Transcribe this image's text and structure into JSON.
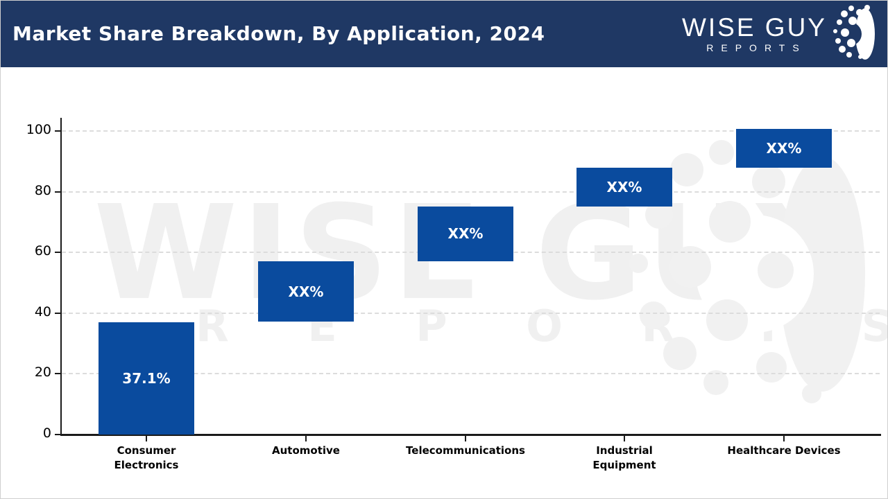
{
  "header": {
    "title": "Market Share Breakdown, By Application, 2024",
    "brand_line1": "WISE GUY",
    "brand_line2": "REPORTS",
    "bg_color": "#1f3864"
  },
  "watermark": {
    "line1": "WISE GUY",
    "line2": "R E P O R T S"
  },
  "chart_data": {
    "type": "bar",
    "subtype": "floating-waterfall-segments",
    "title": "Market Share Breakdown, By Application, 2024",
    "categories": [
      "Consumer Electronics",
      "Automotive",
      "Telecommunications",
      "Industrial Equipment",
      "Healthcare Devices"
    ],
    "category_display_lines": [
      [
        "Consumer",
        "Electronics"
      ],
      [
        "Automotive"
      ],
      [
        "Telecommunications"
      ],
      [
        "Industrial",
        "Equipment"
      ],
      [
        "Healthcare Devices"
      ]
    ],
    "segments": [
      {
        "category": "Consumer Electronics",
        "start": 0,
        "end": 37.1,
        "value": 37.1,
        "label": "37.1%"
      },
      {
        "category": "Automotive",
        "start": 37.1,
        "end": 57.1,
        "value": 20.0,
        "label": "XX%"
      },
      {
        "category": "Telecommunications",
        "start": 57.1,
        "end": 75.2,
        "value": 18.1,
        "label": "XX%"
      },
      {
        "category": "Industrial Equipment",
        "start": 75.2,
        "end": 87.9,
        "value": 12.7,
        "label": "XX%"
      },
      {
        "category": "Healthcare Devices",
        "start": 87.9,
        "end": 100.7,
        "value": 12.8,
        "label": "XX%"
      }
    ],
    "y_ticks": [
      0,
      20,
      40,
      60,
      80,
      100
    ],
    "ylim": [
      0,
      104
    ],
    "xlabel": "",
    "ylabel": "",
    "grid": "horizontal-dashed",
    "legend": "none",
    "bar_color": "#0a4b9e",
    "bar_label_color": "#ffffff"
  }
}
